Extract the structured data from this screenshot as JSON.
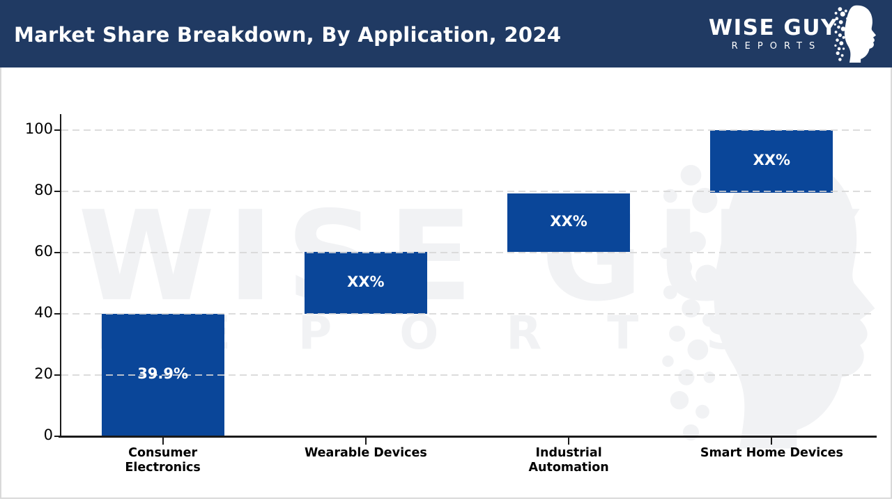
{
  "header": {
    "title": "Market Share Breakdown, By Application, 2024",
    "brand_line1": "WISE GUY",
    "brand_line2": "REPORTS",
    "bg_color": "#203a63"
  },
  "watermark": {
    "line1": "WISE GUY",
    "line2": "REPORTS"
  },
  "chart_data": {
    "type": "bar",
    "subtype": "waterfall",
    "title": "Market Share Breakdown, By Application, 2024",
    "xlabel": "",
    "ylabel": "",
    "ylim": [
      0,
      105
    ],
    "yticks": [
      0,
      20,
      40,
      60,
      80,
      100
    ],
    "grid": "horizontal dashed, drawn above bars",
    "legend": "none",
    "bar_color": "#0a4699",
    "bar_label_color": "#ffffff",
    "categories": [
      "Consumer\nElectronics",
      "Wearable Devices",
      "Industrial\nAutomation",
      "Smart Home Devices"
    ],
    "bars": [
      {
        "category": "Consumer Electronics",
        "start": 0,
        "end": 39.9,
        "label": "39.9%"
      },
      {
        "category": "Wearable Devices",
        "start": 39.9,
        "end": 60.2,
        "label": "XX%"
      },
      {
        "category": "Industrial Automation",
        "start": 60.2,
        "end": 79.3,
        "label": "XX%"
      },
      {
        "category": "Smart Home Devices",
        "start": 79.5,
        "end": 100,
        "label": "XX%"
      }
    ]
  }
}
